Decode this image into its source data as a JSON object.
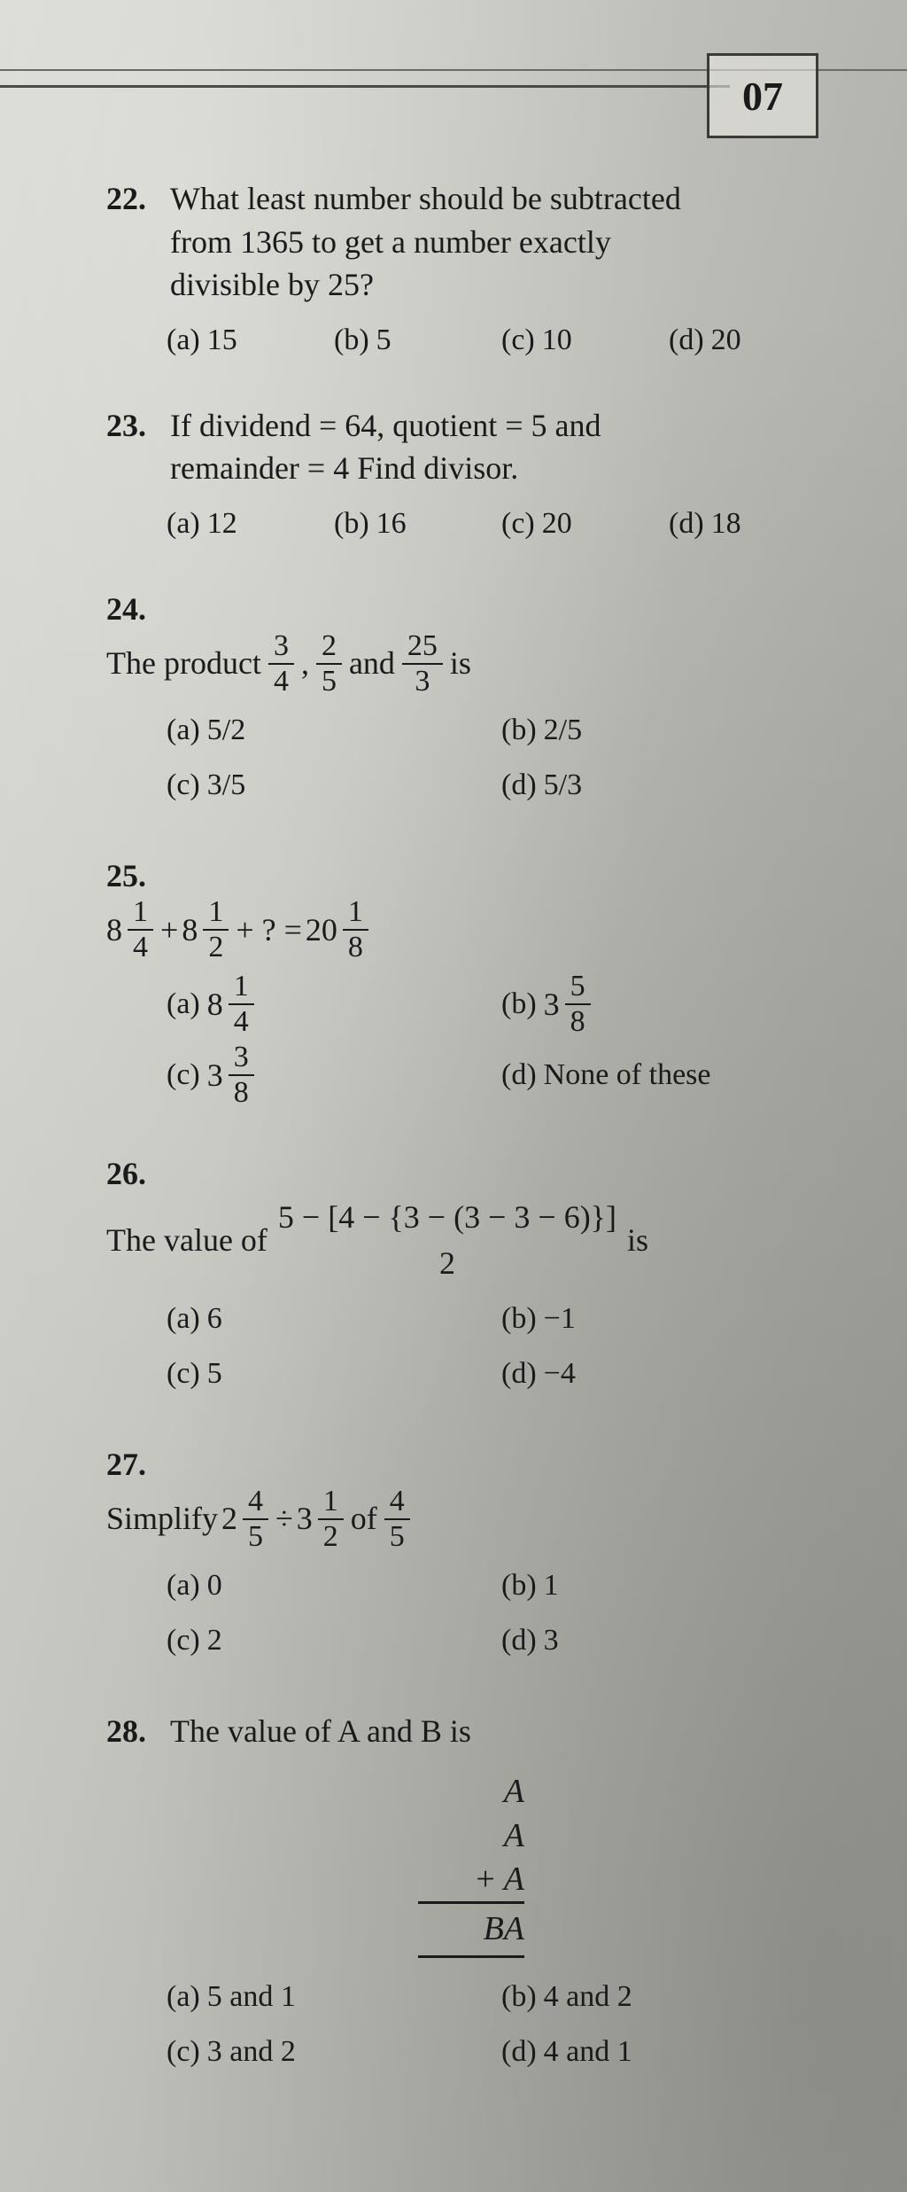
{
  "page_number": "07",
  "colors": {
    "text": "#1a1a1a",
    "rule": "#4a4a46",
    "box_border": "#3a3a36",
    "bg_light": "#d8d8d2",
    "bg_dark": "#a0a09a"
  },
  "typography": {
    "question_fontsize": 36,
    "option_fontsize": 34,
    "pagenum_fontsize": 46
  },
  "q22": {
    "number": "22.",
    "text_l1": "What least number should be subtracted",
    "text_l2": "from 1365 to get a number exactly",
    "text_l3": "divisible by 25?",
    "a_label": "(a)",
    "a_val": "15",
    "b_label": "(b)",
    "b_val": "5",
    "c_label": "(c)",
    "c_val": "10",
    "d_label": "(d)",
    "d_val": "20"
  },
  "q23": {
    "number": "23.",
    "text_l1": "If dividend = 64, quotient = 5 and",
    "text_l2": "remainder = 4 Find divisor.",
    "a_label": "(a)",
    "a_val": "12",
    "b_label": "(b)",
    "b_val": "16",
    "c_label": "(c)",
    "c_val": "20",
    "d_label": "(d)",
    "d_val": "18"
  },
  "q24": {
    "number": "24.",
    "text_pre": "The product",
    "f1_num": "3",
    "f1_den": "4",
    "comma": ",",
    "f2_num": "2",
    "f2_den": "5",
    "and": "and",
    "f3_num": "25",
    "f3_den": "3",
    "is": "is",
    "a_label": "(a)",
    "a_val": "5/2",
    "b_label": "(b)",
    "b_val": "2/5",
    "c_label": "(c)",
    "c_val": "3/5",
    "d_label": "(d)",
    "d_val": "5/3"
  },
  "q25": {
    "number": "25.",
    "m1_whole": "8",
    "m1_num": "1",
    "m1_den": "4",
    "plus": "+",
    "m2_whole": "8",
    "m2_num": "1",
    "m2_den": "2",
    "plus_q": "+ ? =",
    "m3_whole": "20",
    "m3_num": "1",
    "m3_den": "8",
    "a_label": "(a)",
    "a_whole": "8",
    "a_num": "1",
    "a_den": "4",
    "b_label": "(b)",
    "b_whole": "3",
    "b_num": "5",
    "b_den": "8",
    "c_label": "(c)",
    "c_whole": "3",
    "c_num": "3",
    "c_den": "8",
    "d_label": "(d)",
    "d_val": "None of these"
  },
  "q26": {
    "number": "26.",
    "text_pre": "The value of",
    "numerator": "5 − [4 − {3 − (3 − 3 − 6)}]",
    "denominator": "2",
    "is": "is",
    "a_label": "(a)",
    "a_val": "6",
    "b_label": "(b)",
    "b_val": "−1",
    "c_label": "(c)",
    "c_val": "5",
    "d_label": "(d)",
    "d_val": "−4"
  },
  "q27": {
    "number": "27.",
    "text_pre": "Simplify",
    "m1_whole": "2",
    "m1_num": "4",
    "m1_den": "5",
    "div": "÷",
    "m2_whole": "3",
    "m2_num": "1",
    "m2_den": "2",
    "of": "of",
    "f3_num": "4",
    "f3_den": "5",
    "a_label": "(a)",
    "a_val": "0",
    "b_label": "(b)",
    "b_val": "1",
    "c_label": "(c)",
    "c_val": "2",
    "d_label": "(d)",
    "d_val": "3"
  },
  "q28": {
    "number": "28.",
    "text": "The value of A and B is",
    "stack_r1": "A",
    "stack_r2": "A",
    "stack_r3": "A",
    "stack_res": "BA",
    "a_label": "(a)",
    "a_val": "5 and 1",
    "b_label": "(b)",
    "b_val": "4 and 2",
    "c_label": "(c)",
    "c_val": "3 and 2",
    "d_label": "(d)",
    "d_val": "4 and 1"
  }
}
